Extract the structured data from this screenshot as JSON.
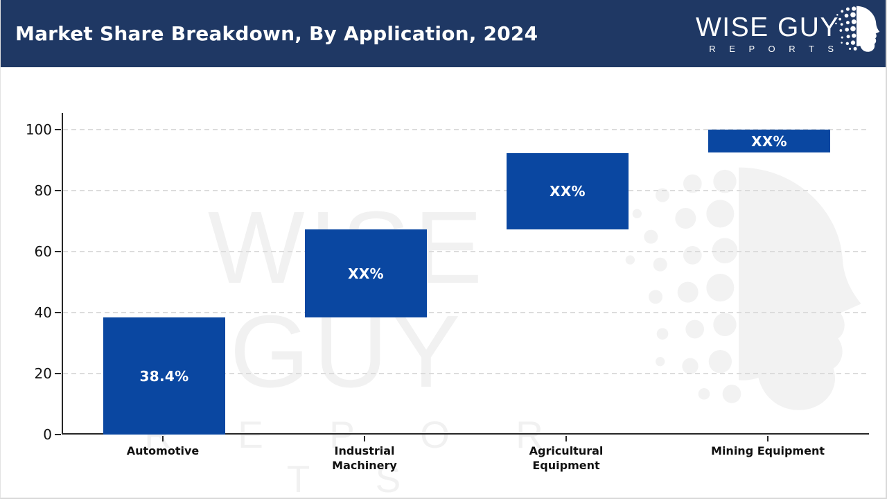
{
  "header": {
    "title": "Market Share Breakdown, By Application, 2024",
    "logo": {
      "brand_line1": "WISE GUY",
      "brand_line2": "R E P O R T S"
    }
  },
  "watermark": {
    "line1": "WISE GUY",
    "line2": "R E P O R T S"
  },
  "chart_data": {
    "type": "bar",
    "variant": "waterfall-stacked-share",
    "title": "Market Share Breakdown, By Application, 2024",
    "categories": [
      "Automotive",
      "Industrial Machinery",
      "Agricultural Equipment",
      "Mining Equipment"
    ],
    "segments": [
      {
        "category": "Automotive",
        "display": "Automotive",
        "start": 0,
        "end": 38.4,
        "value_label": "38.4%"
      },
      {
        "category": "Industrial Machinery",
        "display": "Industrial\nMachinery",
        "start": 38.4,
        "end": 67.3,
        "value_label": "XX%"
      },
      {
        "category": "Agricultural Equipment",
        "display": "Agricultural\nEquipment",
        "start": 67.3,
        "end": 92.4,
        "value_label": "XX%"
      },
      {
        "category": "Mining Equipment",
        "display": "Mining Equipment",
        "start": 92.4,
        "end": 100,
        "value_label": "XX%"
      }
    ],
    "yticks": [
      0,
      20,
      40,
      60,
      80,
      100
    ],
    "ylim": [
      0,
      105.5
    ],
    "xlabel": "",
    "ylabel": "",
    "grid": "horizontal-dashed",
    "legend": "none",
    "colors": {
      "bar": "#0a47a1",
      "header_bg": "#1f3864",
      "grid": "#dcdcdc",
      "axis": "#262626",
      "value_label": "#ffffff",
      "watermark": "#f1f1f1"
    }
  }
}
